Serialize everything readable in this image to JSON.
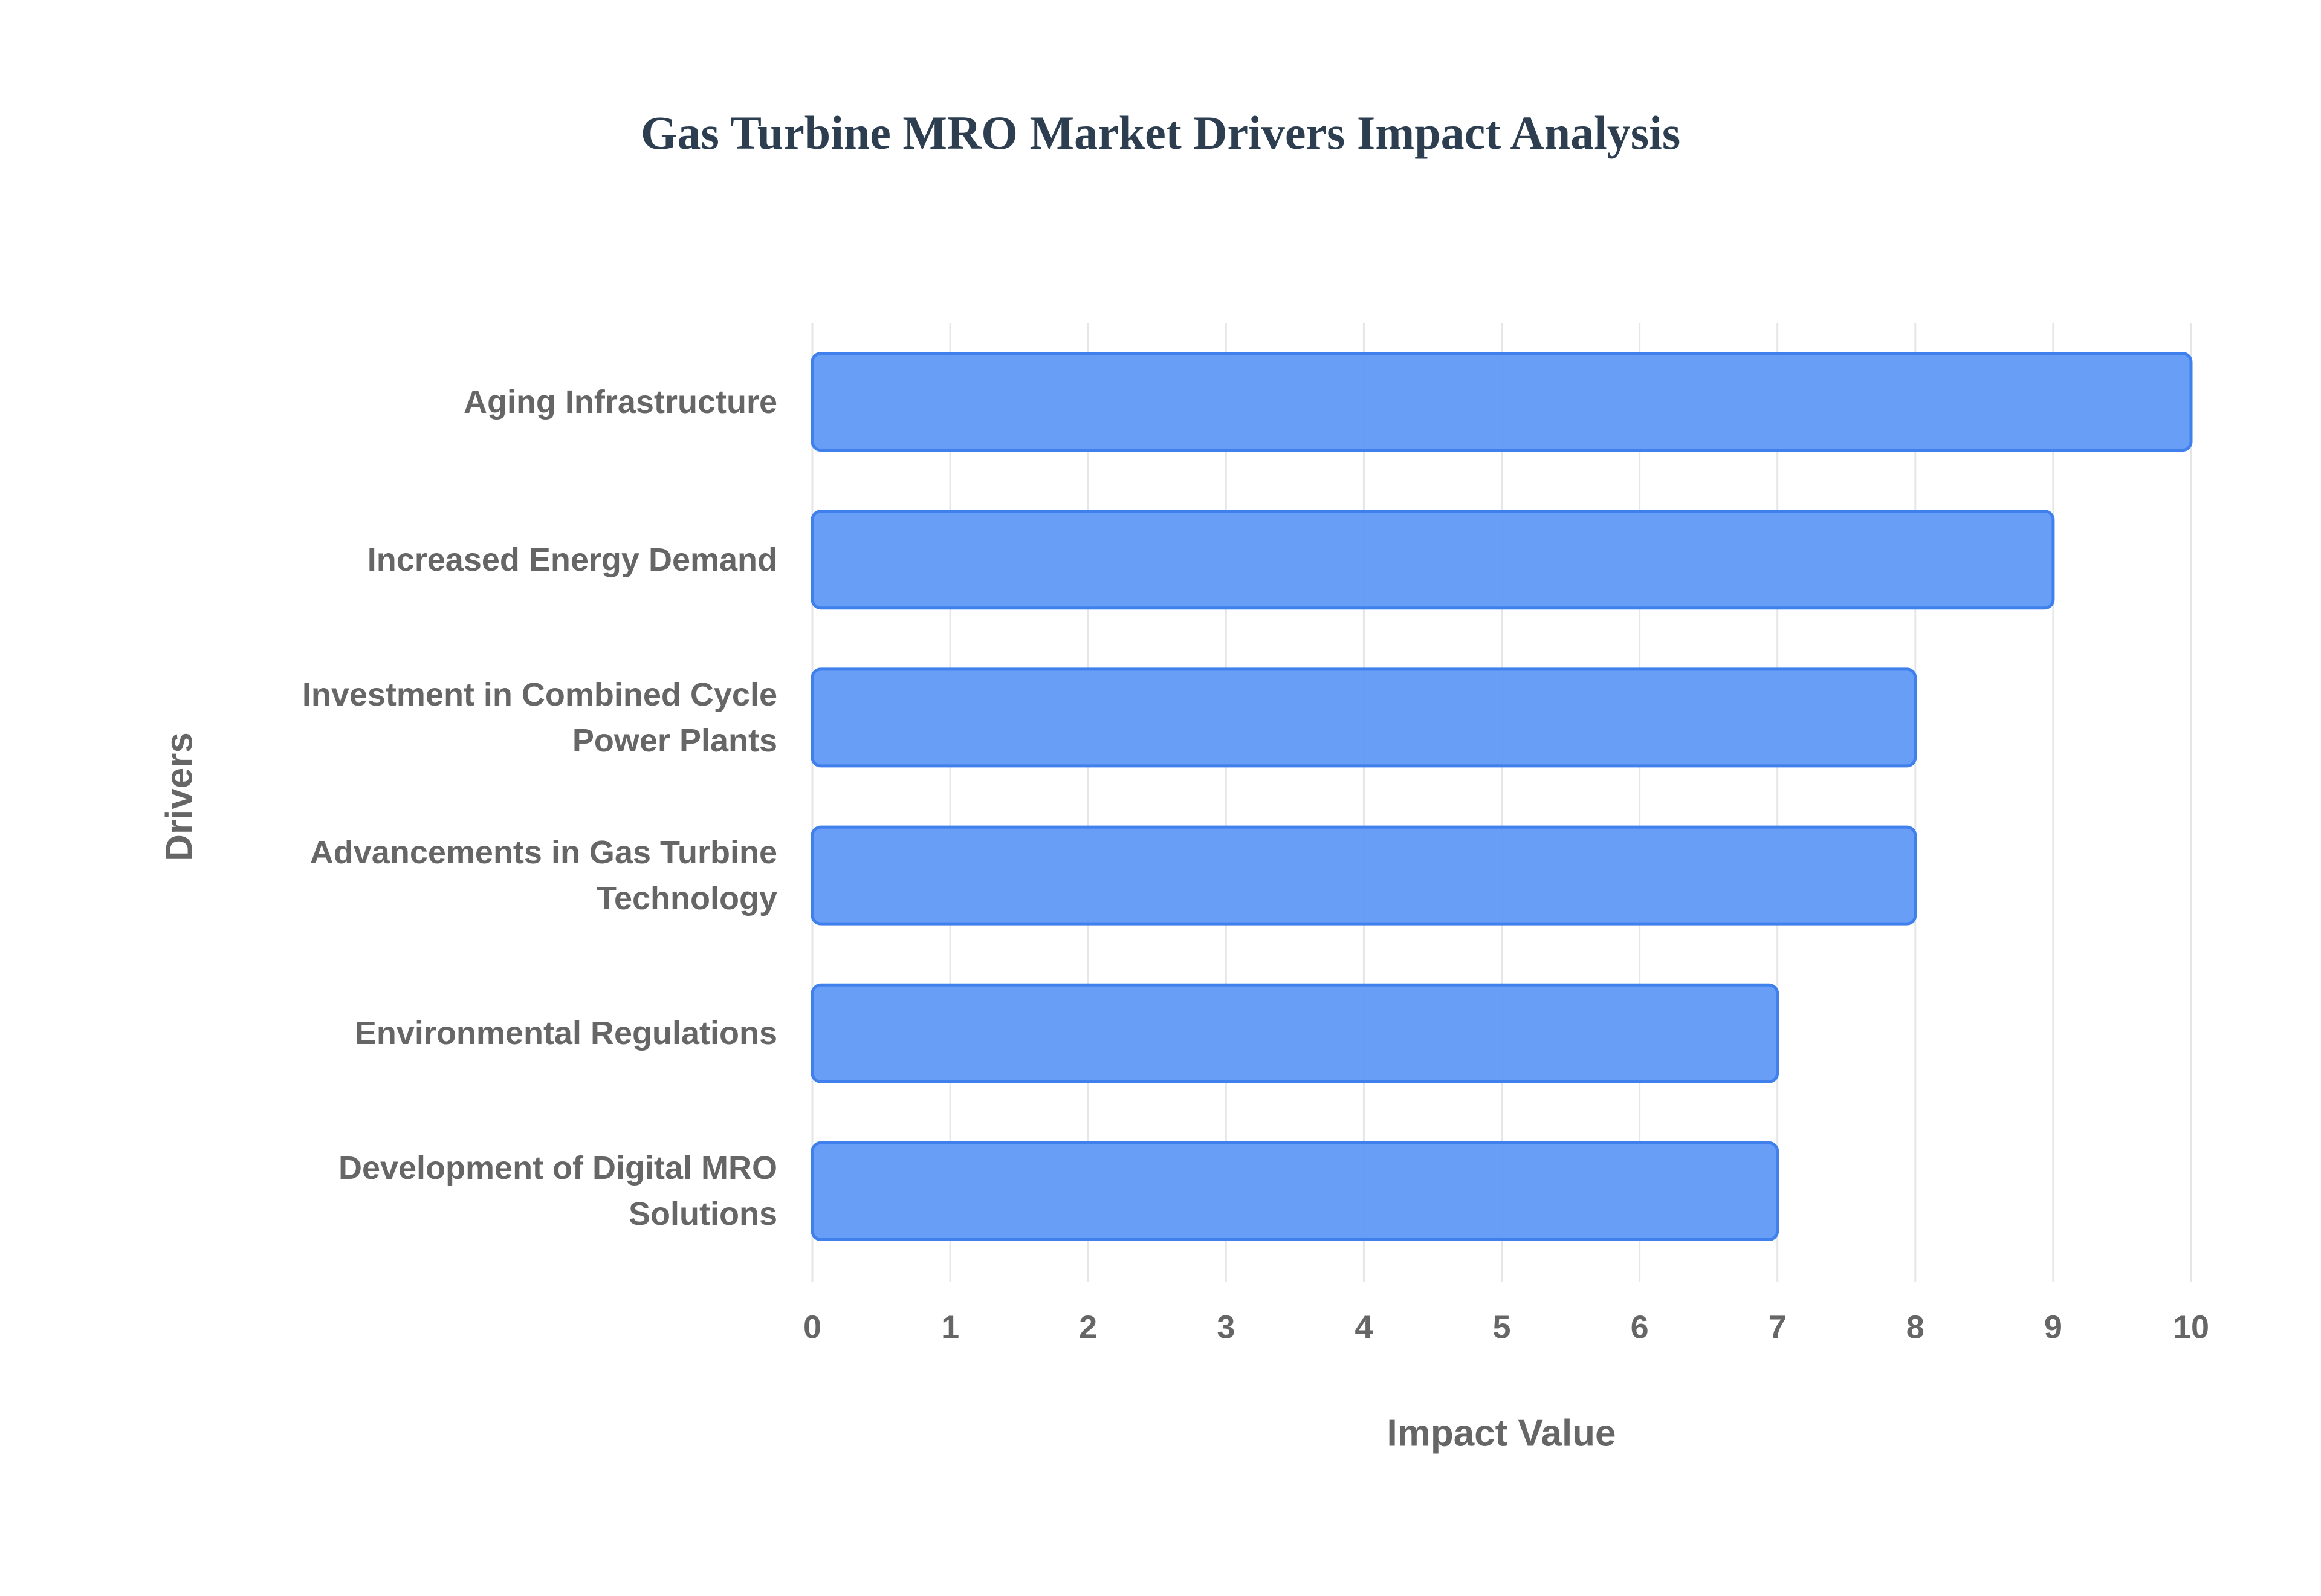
{
  "chart_data": {
    "type": "bar",
    "orientation": "horizontal",
    "title": "Gas Turbine MRO Market Drivers Impact Analysis",
    "x_label": "Impact Value",
    "y_label": "Drivers",
    "categories": [
      "Aging Infrastructure",
      "Increased Energy Demand",
      "Investment in Combined Cycle Power Plants",
      "Advancements in Gas Turbine Technology",
      "Environmental Regulations",
      "Development of Digital MRO Solutions"
    ],
    "values": [
      10,
      9,
      8,
      8,
      7,
      7
    ],
    "color": "#6199f5",
    "xlim": [
      0,
      10
    ],
    "xticks": [
      0,
      1,
      2,
      3,
      4,
      5,
      6,
      7,
      8,
      9,
      10
    ],
    "grid": true
  }
}
